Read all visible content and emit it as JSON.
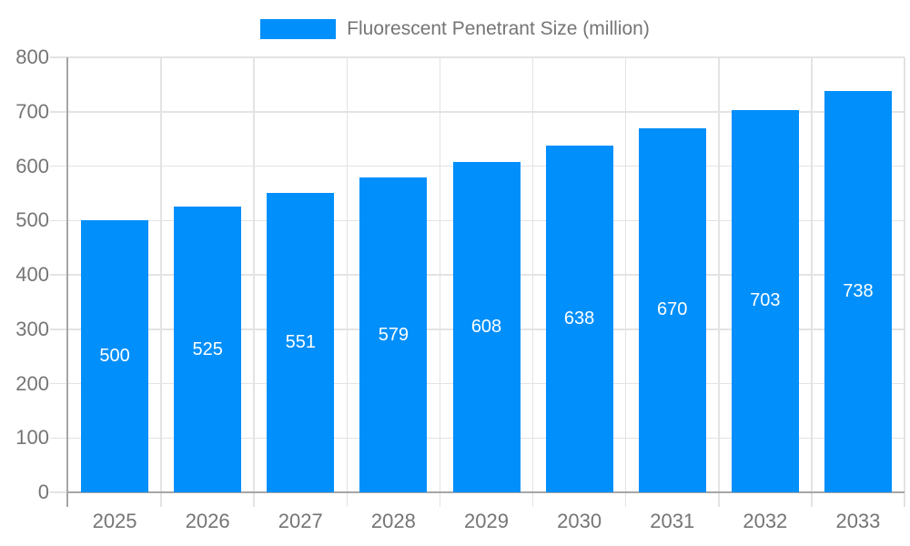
{
  "legend": {
    "label": "Fluorescent Penetrant Size (million)"
  },
  "chart_data": {
    "type": "bar",
    "title": "Fluorescent Penetrant Size (million)",
    "categories": [
      "2025",
      "2026",
      "2027",
      "2028",
      "2029",
      "2030",
      "2031",
      "2032",
      "2033"
    ],
    "values": [
      500,
      525,
      551,
      579,
      608,
      638,
      670,
      703,
      738
    ],
    "series": [
      {
        "name": "Fluorescent Penetrant Size (million)",
        "values": [
          500,
          525,
          551,
          579,
          608,
          638,
          670,
          703,
          738
        ]
      }
    ],
    "xlabel": "",
    "ylabel": "",
    "ylim": [
      0,
      800
    ],
    "ytick_step": 100,
    "yticks": [
      0,
      100,
      200,
      300,
      400,
      500,
      600,
      700,
      800
    ],
    "grid": true,
    "legend_position": "top",
    "value_labels_shown": true,
    "colors": {
      "bar": "#008FFB",
      "value_label": "#ffffff",
      "axis_text": "#757575",
      "grid_line": "#e3e3e3",
      "axis_line": "#a6a6a6",
      "background": "#ffffff"
    }
  }
}
